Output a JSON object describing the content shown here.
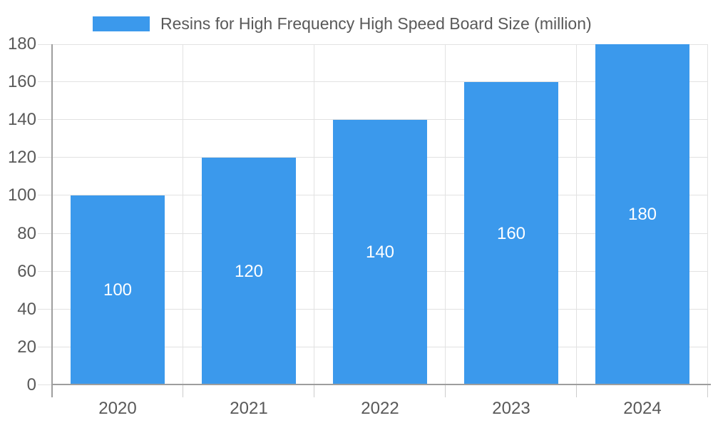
{
  "chart_data": {
    "type": "bar",
    "title": "",
    "legend_label": "Resins for High Frequency High Speed Board Size (million)",
    "legend_position": "top",
    "categories": [
      "2020",
      "2021",
      "2022",
      "2023",
      "2024"
    ],
    "values": [
      100,
      120,
      140,
      160,
      180
    ],
    "bar_value_labels": [
      "100",
      "120",
      "140",
      "160",
      "180"
    ],
    "yticks": [
      0,
      20,
      40,
      60,
      80,
      100,
      120,
      140,
      160,
      180
    ],
    "ylim": [
      0,
      180
    ],
    "xlabel": "",
    "ylabel": "",
    "grid": true,
    "colors": {
      "bar": "#3b99ec",
      "bar_label_text": "#ffffff",
      "axis_text": "#595959",
      "gridline": "#e2e2e2",
      "axis_line": "#9e9e9e",
      "background": "#ffffff"
    }
  }
}
